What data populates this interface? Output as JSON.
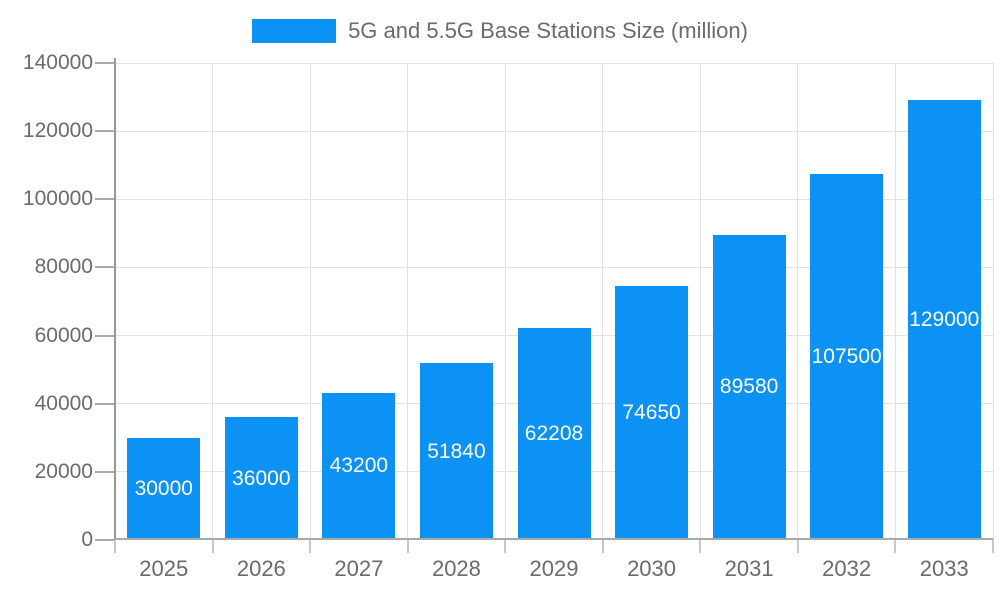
{
  "chart_data": {
    "type": "bar",
    "title": "5G and 5.5G Base Stations Size (million)",
    "legend_position": "top-center",
    "categories": [
      "2025",
      "2026",
      "2027",
      "2028",
      "2029",
      "2030",
      "2031",
      "2032",
      "2033"
    ],
    "values": [
      30000,
      36000,
      43200,
      51840,
      62208,
      74650,
      89580,
      107500,
      129000
    ],
    "bar_value_labels": [
      "30000",
      "36000",
      "43200",
      "51840",
      "62208",
      "74650",
      "89580",
      "107500",
      "129000"
    ],
    "xlabel": "",
    "ylabel": "",
    "ylim": [
      0,
      140000
    ],
    "yticks": [
      0,
      20000,
      40000,
      60000,
      80000,
      100000,
      120000,
      140000
    ],
    "ytick_labels": [
      "0",
      "20000",
      "40000",
      "60000",
      "80000",
      "100000",
      "120000",
      "140000"
    ],
    "grid": "horizontal and vertical, light gray",
    "colors": {
      "bar": "#0b92f4",
      "bar_label_text": "#ffffff",
      "gridline": "#e2e2e2",
      "axis_line": "#989898",
      "baseline": "#a9a9a9",
      "tick": "#a9a9a9",
      "text": "#6b6b6b",
      "background": "#ffffff"
    }
  }
}
